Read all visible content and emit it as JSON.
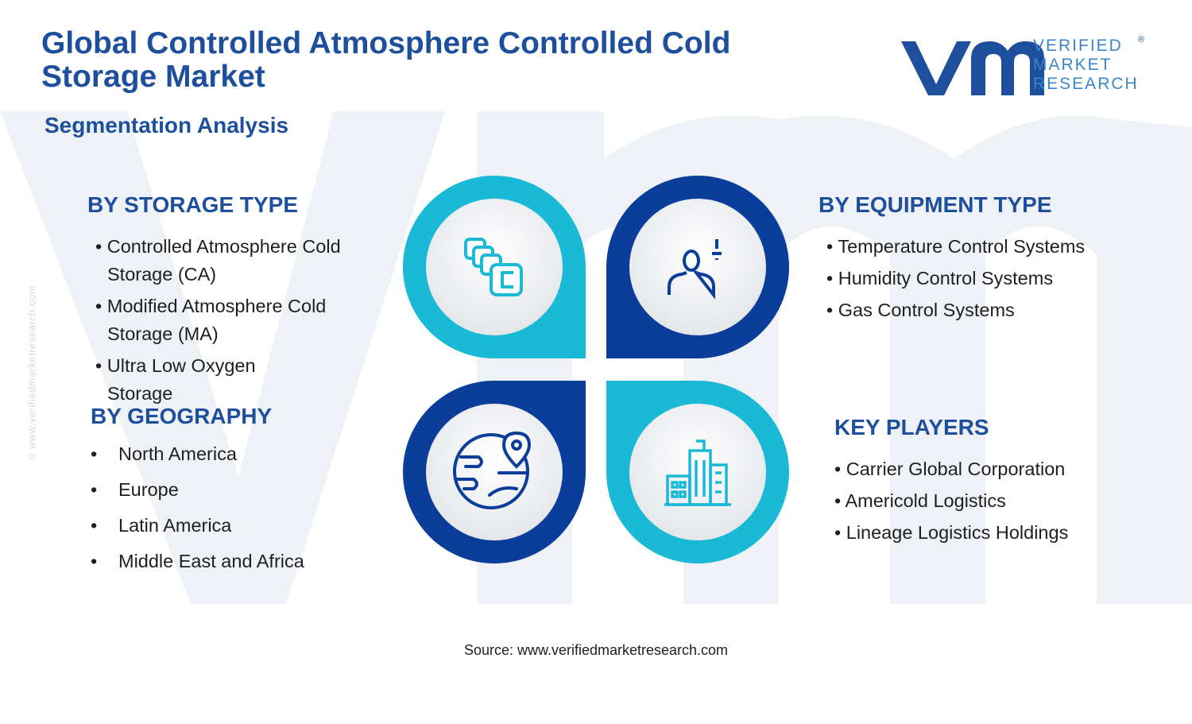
{
  "title": "Global Controlled Atmosphere Controlled Cold Storage Market",
  "subtitle": "Segmentation Analysis",
  "logo": {
    "line1": "VERIFIED",
    "line2": "MARKET",
    "line3": "RESEARCH",
    "registered": "®"
  },
  "watermark_url": "© www.verifiedmarketresearch.com",
  "colors": {
    "navy": "#1d4f9c",
    "dark_blue": "#0b3d9b",
    "cyan": "#1ab9d6",
    "text": "#1f1f1f"
  },
  "segments": {
    "storage_type": {
      "heading": "BY STORAGE TYPE",
      "icon": "cold-storage-units-icon",
      "items": [
        {
          "line1": "• Controlled Atmosphere Cold",
          "line2": "Storage (CA)"
        },
        {
          "line1": "• Modified Atmosphere Cold",
          "line2": "Storage (MA)"
        },
        {
          "line1": "• Ultra Low Oxygen",
          "line2": "Storage"
        }
      ]
    },
    "equipment_type": {
      "heading": "BY EQUIPMENT TYPE",
      "icon": "user-plus-icon",
      "items": [
        "• Temperature Control Systems",
        "• Humidity Control Systems",
        "• Gas Control Systems"
      ]
    },
    "geography": {
      "heading": "BY GEOGRAPHY",
      "icon": "globe-location-icon",
      "bullet": "•",
      "items": [
        "North America",
        "Europe",
        "Latin America",
        "Middle East and Africa"
      ]
    },
    "key_players": {
      "heading": "KEY PLAYERS",
      "icon": "city-buildings-icon",
      "items": [
        "• Carrier Global Corporation",
        "• Americold Logistics",
        "• Lineage Logistics Holdings"
      ]
    }
  },
  "source": "Source: www.verifiedmarketresearch.com"
}
